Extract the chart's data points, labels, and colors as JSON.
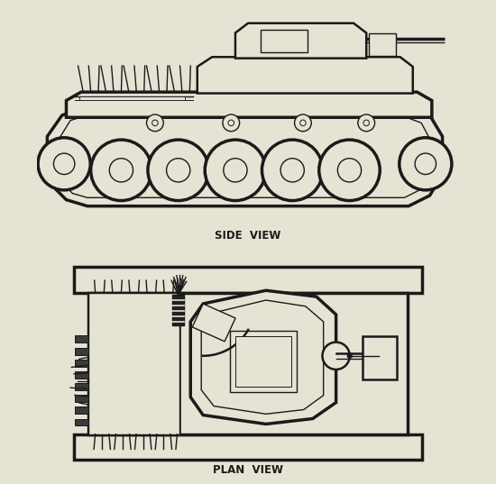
{
  "bg_color": "#e5e3d4",
  "line_color": "#1a1a1a",
  "lw_main": 1.8,
  "lw_thin": 1.0,
  "lw_thick": 2.5,
  "title1": "SIDE  VIEW",
  "title2": "PLAN  VIEW",
  "title_fontsize": 8.5,
  "title_font": "DejaVu Sans"
}
